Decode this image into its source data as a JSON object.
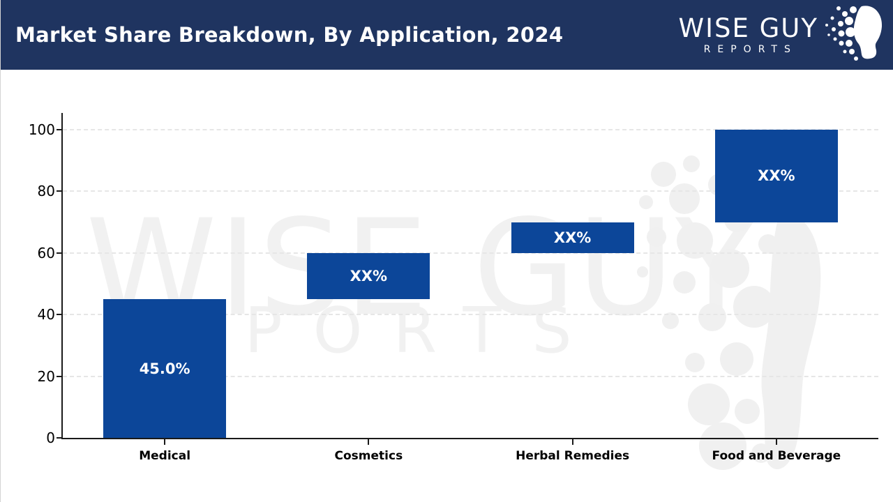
{
  "header": {
    "logo": {
      "line1": "WISE GUY",
      "line2": "REPORTS"
    }
  },
  "watermark": {
    "line1": "WISE GUY",
    "line2": "REPORTS"
  },
  "chart_data": {
    "type": "bar",
    "subtype": "waterfall",
    "title": "Market Share Breakdown, By Application, 2024",
    "categories": [
      "Medical",
      "Cosmetics",
      "Herbal Remedies",
      "Food and Beverage"
    ],
    "segments": [
      {
        "category": "Medical",
        "start": 0,
        "end": 45,
        "label": "45.0%"
      },
      {
        "category": "Cosmetics",
        "start": 45,
        "end": 60,
        "label": "XX%"
      },
      {
        "category": "Herbal Remedies",
        "start": 60,
        "end": 70,
        "label": "XX%"
      },
      {
        "category": "Food and Beverage",
        "start": 70,
        "end": 100,
        "label": "XX%"
      }
    ],
    "ylabel": "",
    "xlabel": "",
    "ylim": [
      0,
      105
    ],
    "yticks": [
      0,
      20,
      40,
      60,
      80,
      100
    ],
    "grid": "horizontal-dashed",
    "legend": "none",
    "bar_color": "#0c4699",
    "bar_label_color": "#ffffff",
    "header_color": "#1f3460"
  }
}
